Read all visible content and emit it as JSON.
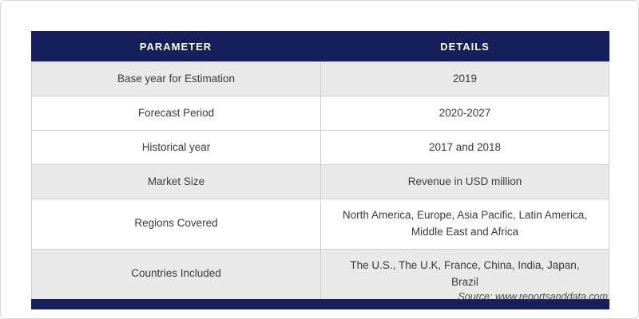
{
  "colors": {
    "header_bg": "#141f5c",
    "row_shaded_bg": "#e9e9e9",
    "row_plain_bg": "#ffffff",
    "border": "#cfcfcf"
  },
  "table": {
    "header": {
      "parameter_label": "PARAMETER",
      "details_label": "DETAILS"
    },
    "rows": [
      {
        "parameter": "Base year for Estimation",
        "details": "2019"
      },
      {
        "parameter": "Forecast Period",
        "details": "2020-2027"
      },
      {
        "parameter": "Historical year",
        "details": "2017 and 2018"
      },
      {
        "parameter": "Market Size",
        "details": "Revenue in USD million"
      },
      {
        "parameter": "Regions Covered",
        "details": "North America, Europe, Asia Pacific, Latin America, Middle East and Africa"
      },
      {
        "parameter": "Countries Included",
        "details": "The U.S., The  U.K, France, China, India, Japan, Brazil"
      }
    ]
  },
  "source": {
    "text": "Source: www.reportsanddata.com"
  }
}
